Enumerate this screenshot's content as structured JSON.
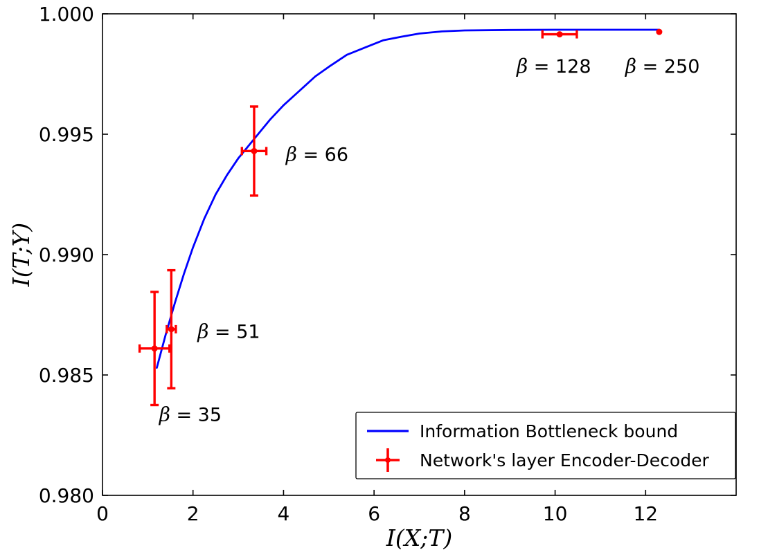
{
  "figure": {
    "background": "#ffffff"
  },
  "chart_data": {
    "type": "line",
    "title": "",
    "xlabel": "I(X;T)",
    "ylabel": "I(T;Y)",
    "xlim": [
      0,
      14
    ],
    "ylim": [
      0.98,
      1.0
    ],
    "x_ticks": [
      0,
      2,
      4,
      6,
      8,
      10,
      12
    ],
    "x_tick_labels": [
      "0",
      "2",
      "4",
      "6",
      "8",
      "10",
      "12"
    ],
    "y_ticks": [
      0.98,
      0.985,
      0.99,
      0.995,
      1.0
    ],
    "y_tick_labels": [
      "0.980",
      "0.985",
      "0.990",
      "0.995",
      "1.000"
    ],
    "grid": false,
    "colors": {
      "bound": "#0000ff",
      "points": "#ff0000",
      "axes": "#000000"
    },
    "legend": {
      "position": "lower right",
      "items": [
        {
          "marker": "line",
          "color": "#0000ff",
          "label": "Information Bottleneck bound"
        },
        {
          "marker": "plus",
          "color": "#ff0000",
          "label": "Network's layer Encoder-Decoder"
        }
      ]
    },
    "series": [
      {
        "name": "Information Bottleneck bound",
        "type": "line",
        "color": "#0000ff",
        "x": [
          1.2,
          1.4,
          1.6,
          1.8,
          2.0,
          2.25,
          2.5,
          2.75,
          3.0,
          3.35,
          3.7,
          4.0,
          4.35,
          4.7,
          5.0,
          5.4,
          5.8,
          6.2,
          6.6,
          7.0,
          7.5,
          8.0,
          9.0,
          10.0,
          11.0,
          12.3
        ],
        "y": [
          0.9853,
          0.9867,
          0.988,
          0.9892,
          0.9903,
          0.9915,
          0.9925,
          0.9933,
          0.994,
          0.9948,
          0.9956,
          0.9962,
          0.9968,
          0.9974,
          0.9978,
          0.9983,
          0.9986,
          0.9989,
          0.99905,
          0.99918,
          0.99927,
          0.99931,
          0.99933,
          0.99934,
          0.99934,
          0.99934
        ]
      },
      {
        "name": "Network's layer Encoder-Decoder",
        "type": "errorbar",
        "color": "#ff0000",
        "points": [
          {
            "label": "β = 35",
            "x": 1.15,
            "y": 0.9861,
            "xerr": 0.33,
            "yerr": 0.00235
          },
          {
            "label": "β = 51",
            "x": 1.52,
            "y": 0.9869,
            "xerr": 0.1,
            "yerr": 0.00245
          },
          {
            "label": "β = 66",
            "x": 3.35,
            "y": 0.9943,
            "xerr": 0.27,
            "yerr": 0.00185
          },
          {
            "label": "β = 128",
            "x": 10.1,
            "y": 0.99915,
            "xerr": 0.38,
            "yerr": 0
          },
          {
            "label": "β = 250",
            "x": 12.3,
            "y": 0.99925,
            "xerr": 0,
            "yerr": 0
          }
        ]
      }
    ],
    "annotations": [
      {
        "text": "β = 35",
        "x": 1.25,
        "y": 0.98335
      },
      {
        "text": "β = 51",
        "x": 2.1,
        "y": 0.9868
      },
      {
        "text": "β = 66",
        "x": 4.05,
        "y": 0.99415
      },
      {
        "text": "β = 128",
        "x": 9.15,
        "y": 0.99782
      },
      {
        "text": "β = 250",
        "x": 11.55,
        "y": 0.99782
      }
    ]
  }
}
